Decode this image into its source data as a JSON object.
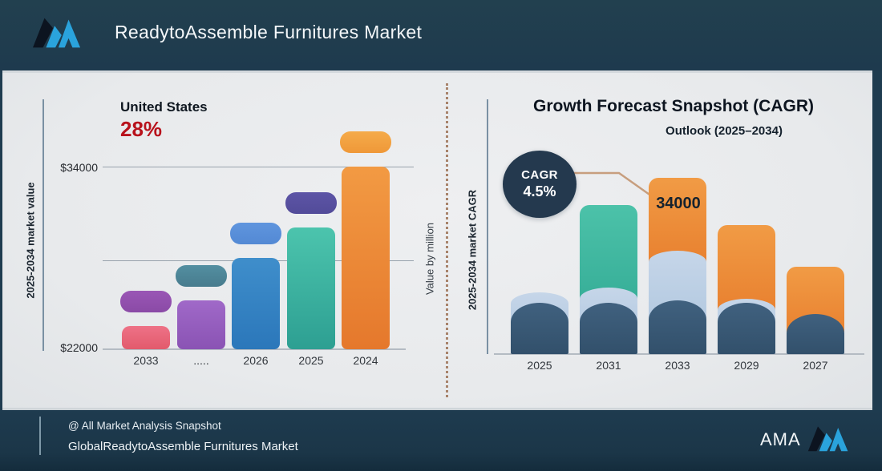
{
  "header": {
    "title": "ReadytoAssemble Furnitures Market",
    "logo": "ama-mountain-logo"
  },
  "footer": {
    "line1": "@ All Market Analysis Snapshot",
    "line2": "GlobalReadytoAssemble Furnitures Market",
    "brand": "AMA",
    "logo": "ama-mountain-logo"
  },
  "left_chart": {
    "region_label": "United States",
    "highlight_value": "28%",
    "y_axis_label": "2025-2034 market value",
    "right_axis_label": "Value by million",
    "y_tick_top": "$34000",
    "y_tick_bottom": "$22000"
  },
  "right_chart": {
    "title": "Growth Forecast Snapshot (CAGR)",
    "subtitle": "Outlook (2025–2034)",
    "y_axis_label": "2025-2034 market CAGR",
    "badge_line1": "CAGR",
    "badge_line2": "4.5%",
    "callout_value": "34000"
  },
  "colors": {
    "dark_background": "#1f3c50",
    "panel_background": "#e9eaec",
    "accent_red": "#b8121c",
    "badge_navy": "#24394e",
    "connector_tan": "#c79e7e",
    "divider_dots": "#a8836b"
  },
  "chart_data": [
    {
      "type": "bar",
      "title": "United States",
      "highlight": "28%",
      "ylabel": "2025-2034 market value",
      "ylabel_right": "Value by million",
      "ylim": [
        22000,
        34000
      ],
      "yticks": [
        {
          "label": "$22000",
          "value": 22000
        },
        {
          "label": "$34000",
          "value": 34000
        }
      ],
      "categories": [
        "2033",
        ".....",
        "2026",
        "2025",
        "2024"
      ],
      "values": [
        23500,
        25200,
        28000,
        30000,
        34000
      ],
      "legend": "none",
      "grid": "horizontal",
      "bars": [
        {
          "label": "2033",
          "value": 23500,
          "color": [
            "#ee7287",
            "#e25a6c"
          ],
          "cap_color": [
            "#9a56b5",
            "#8a4aa6"
          ]
        },
        {
          "label": ".....",
          "value": 25200,
          "color": [
            "#a069c8",
            "#8a53b4"
          ],
          "cap_color": [
            "#538fa1",
            "#477b8d"
          ]
        },
        {
          "label": "2026",
          "value": 28000,
          "color": [
            "#3f8ecb",
            "#2b77ba"
          ],
          "cap_color": [
            "#5f95de",
            "#5389d4"
          ]
        },
        {
          "label": "2025",
          "value": 30000,
          "color": [
            "#4cc4ad",
            "#2d9f92"
          ],
          "cap_color": [
            "#5d55a6",
            "#524b99"
          ]
        },
        {
          "label": "2024",
          "value": 34000,
          "color": [
            "#f29a43",
            "#e5782c"
          ],
          "cap_color": [
            "#f5ab4a",
            "#ef9838"
          ]
        }
      ]
    },
    {
      "type": "bar",
      "stacked": true,
      "title": "Growth Forecast Snapshot (CAGR)",
      "subtitle": "Outlook (2025–2034)",
      "cagr": "4.5%",
      "ylabel": "2025-2034 market CAGR",
      "annotation": {
        "label": "34000",
        "category": "2033"
      },
      "categories": [
        "2025",
        "2031",
        "2033",
        "2029",
        "2027"
      ],
      "segment_colors": {
        "base": [
          "#40617f",
          "#32506b"
        ],
        "mid": [
          "#c6d6e9",
          "#aac3dc"
        ],
        "teal": [
          "#4cc2a9",
          "#37ae98"
        ],
        "orange": [
          "#f19b45",
          "#e8802f"
        ]
      },
      "bars": [
        {
          "label": "2025",
          "segments": {
            "base": 6800,
            "mid": 5100
          }
        },
        {
          "label": "2031",
          "segments": {
            "base": 6800,
            "mid": 6000,
            "teal": 15900
          }
        },
        {
          "label": "2033",
          "segments": {
            "base": 7300,
            "mid": 12700,
            "orange": 14000
          }
        },
        {
          "label": "2029",
          "segments": {
            "base": 6800,
            "mid": 3900,
            "orange": 14200
          }
        },
        {
          "label": "2027",
          "segments": {
            "base": 4600,
            "mid": 1500,
            "orange": 10600
          }
        }
      ]
    }
  ]
}
